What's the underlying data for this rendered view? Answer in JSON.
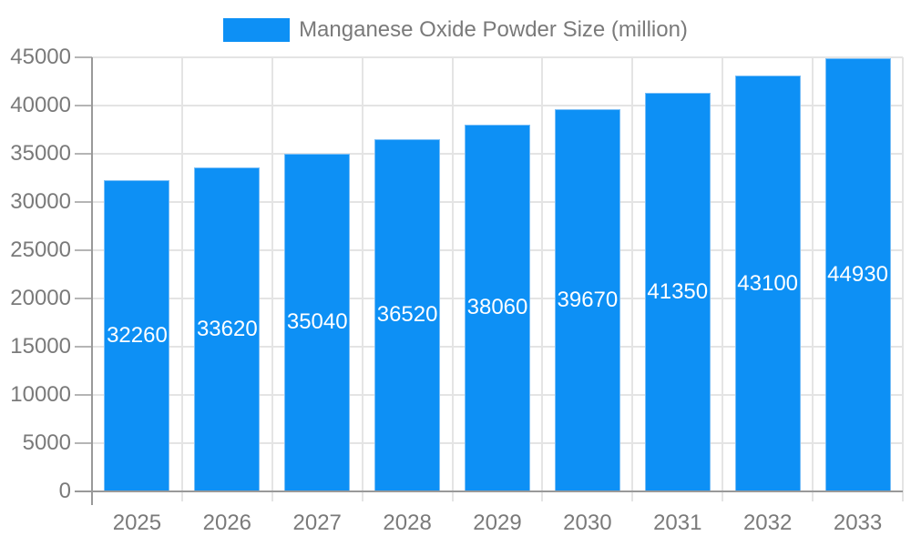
{
  "legend": {
    "label": "Manganese Oxide Powder Size (million)"
  },
  "chart_data": {
    "type": "bar",
    "title": "Manganese Oxide Powder Size (million)",
    "categories": [
      "2025",
      "2026",
      "2027",
      "2028",
      "2029",
      "2030",
      "2031",
      "2032",
      "2033"
    ],
    "values": [
      32260,
      33620,
      35040,
      36520,
      38060,
      39670,
      41350,
      43100,
      44930
    ],
    "series": [
      {
        "name": "Manganese Oxide Powder Size (million)",
        "values": [
          32260,
          33620,
          35040,
          36520,
          38060,
          39670,
          41350,
          43100,
          44930
        ]
      }
    ],
    "xlabel": "",
    "ylabel": "",
    "ylim": [
      0,
      45000
    ],
    "yticks": [
      0,
      5000,
      10000,
      15000,
      20000,
      25000,
      30000,
      35000,
      40000,
      45000
    ],
    "grid": true,
    "legend_position": "top-center",
    "value_labels": "inside-center",
    "colors": {
      "bar": "#0D90F5",
      "bar_border": "#79BEF7",
      "axis": "#999999",
      "gridline": "#E4E4E4",
      "tick": "#B5B5B5",
      "label_text": "#7A7A7A",
      "value_text": "#FFFFFF"
    }
  }
}
